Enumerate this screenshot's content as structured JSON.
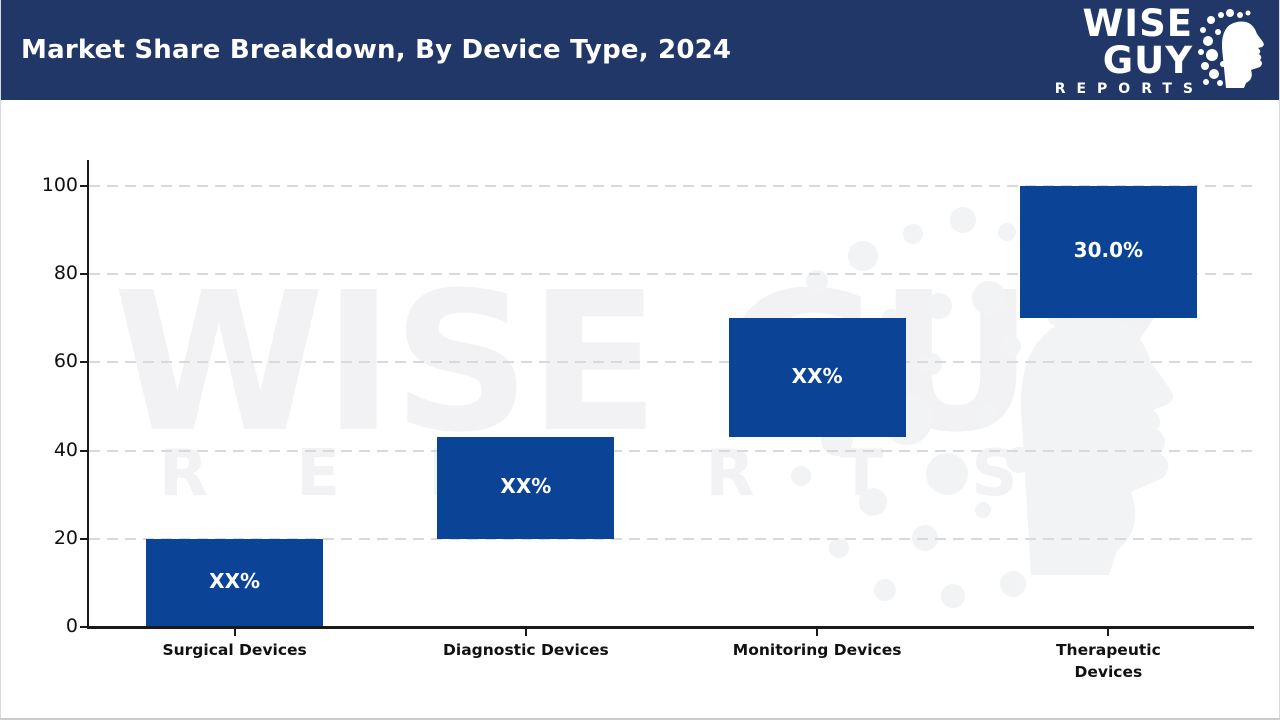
{
  "header": {
    "title": "Market Share Breakdown, By Device Type, 2024",
    "logo": {
      "name": "WISE GUY",
      "sub": "REPORTS"
    }
  },
  "watermark": {
    "name": "WISE GUY",
    "sub": "REPORTS"
  },
  "chart_data": {
    "type": "bar",
    "subtype": "waterfall",
    "title": "Market Share Breakdown, By Device Type, 2024",
    "categories": [
      "Surgical Devices",
      "Diagnostic Devices",
      "Monitoring Devices",
      "Therapeutic\nDevices"
    ],
    "series": [
      {
        "name": "Market share (%)",
        "segments": [
          {
            "category": "Surgical Devices",
            "base": 0,
            "top": 20,
            "label": "XX%"
          },
          {
            "category": "Diagnostic Devices",
            "base": 20,
            "top": 43,
            "label": "XX%"
          },
          {
            "category": "Monitoring Devices",
            "base": 43,
            "top": 70,
            "label": "XX%"
          },
          {
            "category": "Therapeutic Devices",
            "base": 70,
            "top": 100,
            "label": "30.0%"
          }
        ]
      }
    ],
    "y_ticks": [
      0,
      20,
      40,
      60,
      80,
      100
    ],
    "ylim": [
      0,
      100
    ],
    "xlabel": "",
    "ylabel": "",
    "grid": "horizontal-dashed",
    "legend": false,
    "colors": {
      "bar": "#0b4397",
      "grid": "#d9d9d9",
      "axis": "#1a1a1a",
      "header_background": "#203768",
      "bar_label_text": "#ffffff",
      "watermark": "#f2f2f4"
    }
  }
}
